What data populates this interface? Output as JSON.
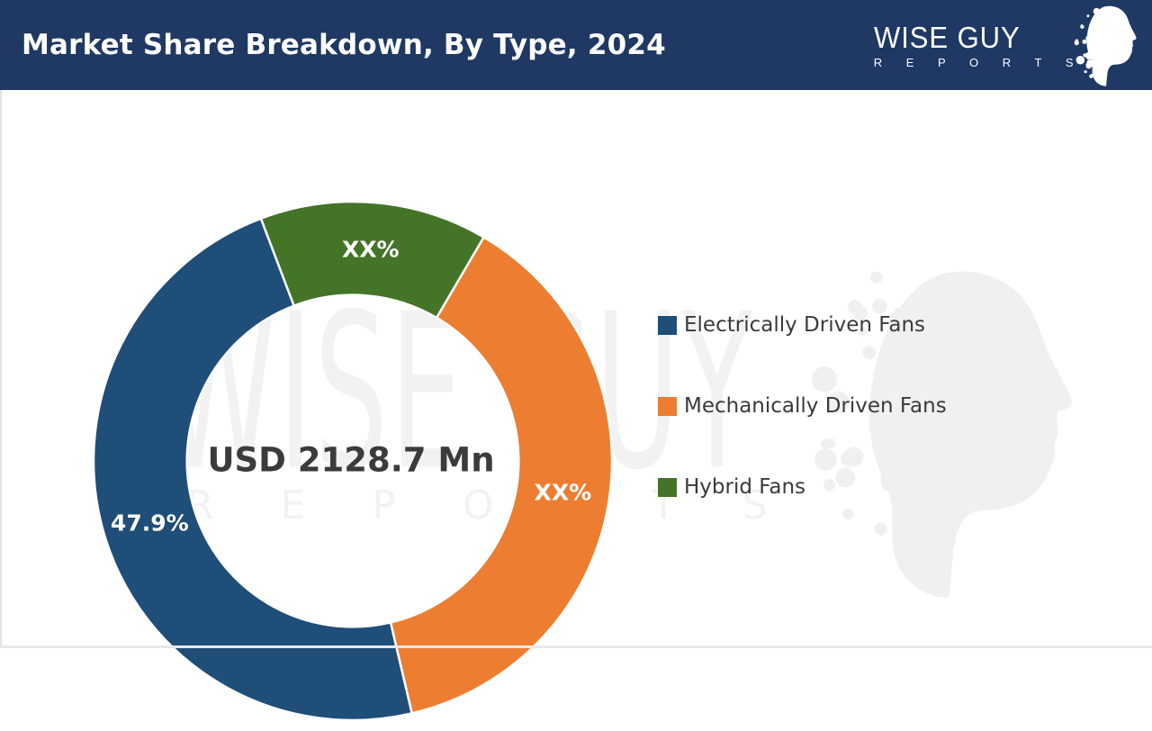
{
  "header": {
    "title": "Market Share Breakdown, By Type, 2024",
    "logo": {
      "line1": "WISE GUY",
      "line2": "R E P O R T S"
    }
  },
  "watermark": {
    "line1": "WISE GUY",
    "line2": "REPORTS"
  },
  "chart_data": {
    "type": "donut",
    "title": "Market Share Breakdown, By Type, 2024",
    "center_label": "USD 2128.7 Mn",
    "start_angle_deg": 166.8,
    "inner_radius_ratio": 0.64,
    "label_radius": 236,
    "segments": [
      {
        "name": "Electrically Driven Fans",
        "value_pct": 47.9,
        "label": "47.9%",
        "color": "#1f4e78"
      },
      {
        "name": "Hybrid Fans",
        "value_pct": 14.2,
        "label": "XX%",
        "color": "#437428"
      },
      {
        "name": "Mechanically Driven Fans",
        "value_pct": 37.9,
        "label": "XX%",
        "color": "#ed7d31"
      }
    ],
    "legend": [
      {
        "label": "Electrically Driven Fans",
        "color": "#1f4e78"
      },
      {
        "label": "Mechanically Driven Fans",
        "color": "#ed7d31"
      },
      {
        "label": "Hybrid Fans",
        "color": "#437428"
      }
    ],
    "legend_position": "right"
  },
  "colors": {
    "header_bg": "#1f3864",
    "slice_label_text": "#ffffff",
    "center_text": "#3b3b3b",
    "legend_text": "#3a3a3a"
  }
}
